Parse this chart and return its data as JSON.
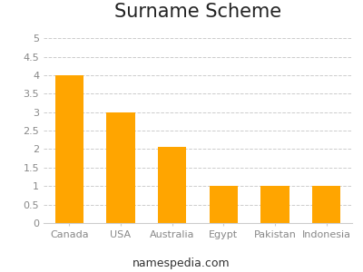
{
  "title": "Surname Scheme",
  "categories": [
    "Canada",
    "USA",
    "Australia",
    "Egypt",
    "Pakistan",
    "Indonesia"
  ],
  "values": [
    4,
    3,
    2.05,
    1,
    1,
    1
  ],
  "bar_color": "#FFA500",
  "ylim": [
    0,
    5.3
  ],
  "yticks": [
    0,
    0.5,
    1,
    1.5,
    2,
    2.5,
    3,
    3.5,
    4,
    4.5,
    5
  ],
  "ytick_labels": [
    "0",
    "0.5",
    "1",
    "1.5",
    "2",
    "2.5",
    "3",
    "3.5",
    "4",
    "4.5",
    "5"
  ],
  "grid_color": "#cccccc",
  "background_color": "#ffffff",
  "title_fontsize": 15,
  "tick_fontsize": 8,
  "watermark": "namespedia.com",
  "watermark_fontsize": 9
}
